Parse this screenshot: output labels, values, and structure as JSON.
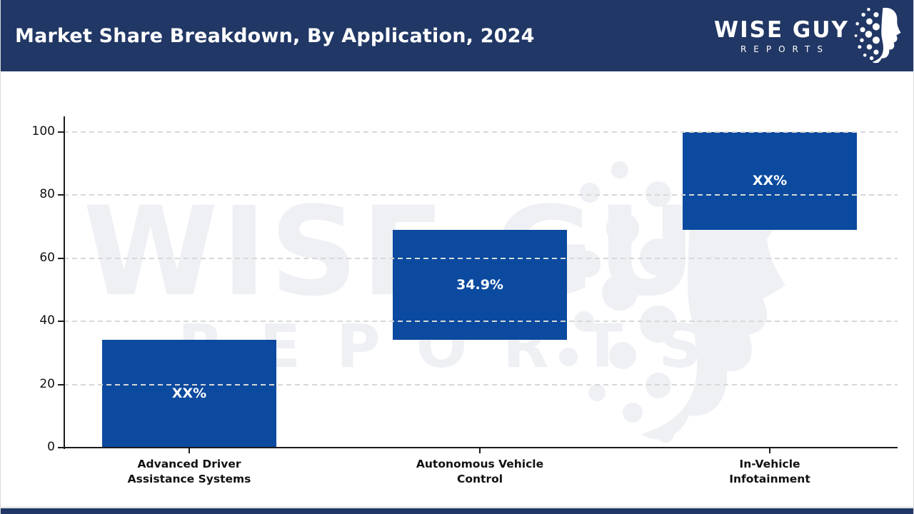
{
  "header": {
    "title": "Market Share Breakdown, By Application, 2024"
  },
  "logo": {
    "line1": "WISE GUY",
    "line2": "REPORTS"
  },
  "watermark": {
    "line1": "WISE GUY",
    "line2": "REPORTS"
  },
  "chart_data": {
    "type": "bar",
    "subtype": "waterfall-stacked-segments",
    "title": "Market Share Breakdown, By Application, 2024",
    "categories": [
      [
        "Advanced Driver",
        "Assistance Systems"
      ],
      [
        "Autonomous Vehicle",
        "Control"
      ],
      [
        "In-Vehicle",
        "Infotainment"
      ]
    ],
    "segments": [
      {
        "label": "XX%",
        "start": 0,
        "end": 34.2
      },
      {
        "label": "34.9%",
        "start": 34.2,
        "end": 69.1
      },
      {
        "label": "XX%",
        "start": 69.1,
        "end": 100
      }
    ],
    "y_ticks": [
      0,
      20,
      40,
      60,
      80,
      100
    ],
    "ylim": [
      0,
      105
    ],
    "xlabel": "",
    "ylabel": "",
    "grid": "horizontal-dashed, drawn above bars",
    "legend": "none",
    "bar_color": "#0b4a9f",
    "bar_label_color": "#ffffff"
  },
  "colors": {
    "header_bg": "#213765",
    "footer_bg": "#213765",
    "bar": "#0b4a9f",
    "gridline": "#d8d8d8",
    "axis": "#1a1a1a",
    "watermark": "#eef0f4",
    "title_text": "#ffffff"
  }
}
